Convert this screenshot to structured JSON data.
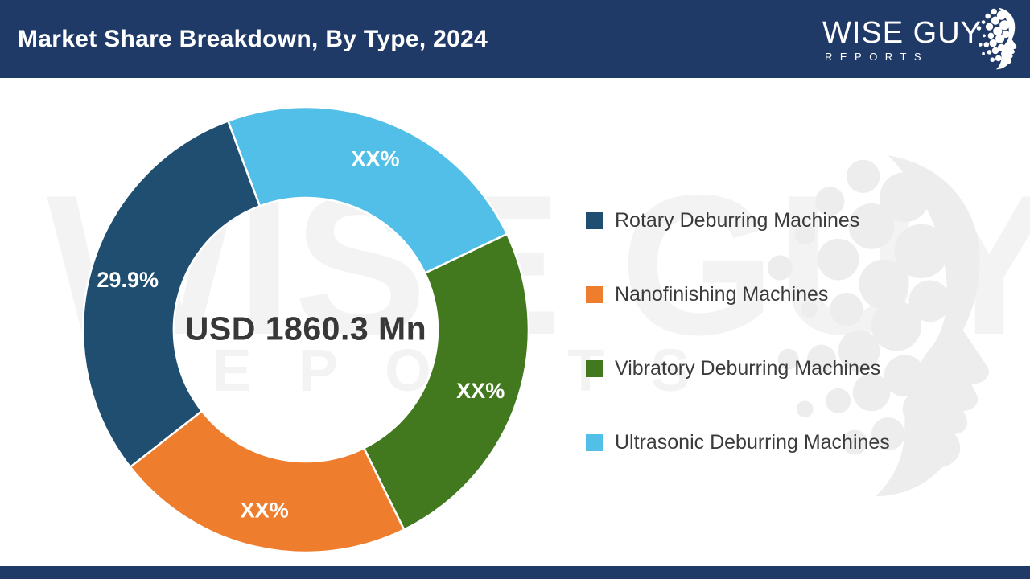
{
  "header": {
    "title": "Market Share Breakdown, By Type, 2024"
  },
  "logo": {
    "name": "WISE GUY",
    "tagline": "REPORTS"
  },
  "watermark": {
    "name": "WISE GUY",
    "tagline": "REPORTS"
  },
  "chart_data": {
    "type": "donut",
    "title": "Market Share Breakdown, By Type, 2024",
    "center_label": "USD 1860.3 Mn",
    "start_angle_deg": -20.4,
    "units": "percent share",
    "segments": [
      {
        "name": "Ultrasonic Deburring Machines",
        "value": 23.6,
        "label": "XX%",
        "color": "#52bfe8"
      },
      {
        "name": "Vibratory Deburring Machines",
        "value": 24.8,
        "label": "XX%",
        "color": "#42791f"
      },
      {
        "name": "Nanofinishing Machines",
        "value": 21.7,
        "label": "XX%",
        "color": "#ee7d2e"
      },
      {
        "name": "Rotary Deburring Machines",
        "value": 29.9,
        "label": "29.9%",
        "color": "#1f4e70"
      }
    ],
    "legend": [
      {
        "label": "Rotary Deburring Machines",
        "color": "#1f4e70"
      },
      {
        "label": "Nanofinishing Machines",
        "color": "#ee7d2e"
      },
      {
        "label": "Vibratory Deburring Machines",
        "color": "#42791f"
      },
      {
        "label": "Ultrasonic Deburring Machines",
        "color": "#52bfe8"
      }
    ],
    "legend_position": "right"
  }
}
